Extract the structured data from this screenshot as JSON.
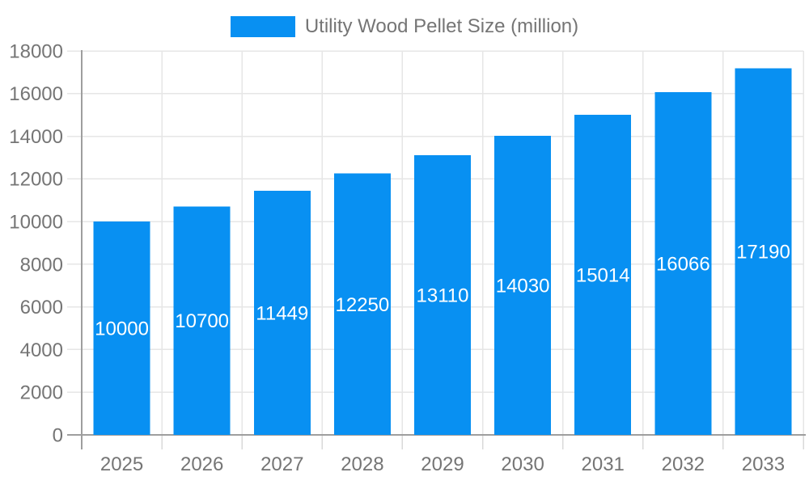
{
  "chart_data": {
    "type": "bar",
    "categories": [
      "2025",
      "2026",
      "2027",
      "2028",
      "2029",
      "2030",
      "2031",
      "2032",
      "2033"
    ],
    "series": [
      {
        "name": "Utility Wood Pellet Size (million)",
        "values": [
          10000,
          10700,
          11449,
          12250,
          13110,
          14030,
          15014,
          16066,
          17190
        ]
      }
    ],
    "title": "",
    "xlabel": "",
    "ylabel": "",
    "ylim": [
      0,
      18000
    ],
    "yticks": [
      0,
      2000,
      4000,
      6000,
      8000,
      10000,
      12000,
      14000,
      16000,
      18000
    ],
    "grid": true,
    "legend_position": "top",
    "data_labels": {
      "position": "inside-center",
      "color": "#ffffff"
    },
    "colors": {
      "bar": "#0890f2",
      "grid": "#e6e6e6",
      "axis": "#9e9e9e",
      "text": "#757575",
      "background": "#ffffff"
    }
  }
}
